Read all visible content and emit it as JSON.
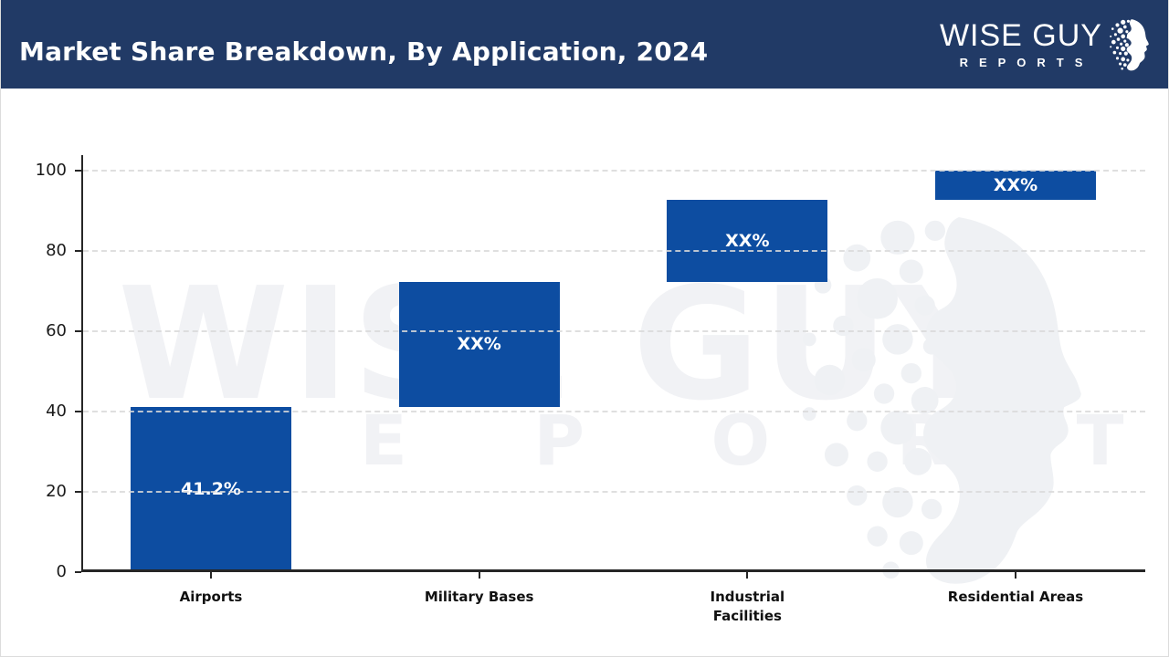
{
  "header": {
    "title": "Market Share Breakdown, By Application, 2024",
    "logo": {
      "line1": "WISE GUY",
      "line2": "REPORTS"
    }
  },
  "watermark": {
    "line1": "WISE GUY",
    "line2": "R E P O R T S"
  },
  "chart_data": {
    "type": "bar",
    "subtype": "waterfall",
    "title": "Market Share Breakdown, By Application, 2024",
    "categories": [
      "Airports",
      "Military Bases",
      "Industrial Facilities",
      "Residential Areas"
    ],
    "bars": [
      {
        "category": "Airports",
        "category_display": "Airports",
        "start": 0,
        "end": 41.2,
        "label": "41.2%"
      },
      {
        "category": "Military Bases",
        "category_display": "Military Bases",
        "start": 41.2,
        "end": 72.3,
        "label": "XX%"
      },
      {
        "category": "Industrial Facilities",
        "category_display": "Industrial\nFacilities",
        "start": 72.3,
        "end": 92.7,
        "label": "XX%"
      },
      {
        "category": "Residential Areas",
        "category_display": "Residential Areas",
        "start": 92.7,
        "end": 100,
        "label": "XX%"
      }
    ],
    "xlabel": "",
    "ylabel": "",
    "yticks": [
      0,
      20,
      40,
      60,
      80,
      100
    ],
    "ylim": [
      0,
      104
    ],
    "grid": "horizontal-dashed",
    "legend": "none",
    "bar_color": "#0d4da1",
    "bar_label_color": "#ffffff"
  },
  "colors": {
    "header_bg": "#213a66",
    "bar": "#0d4da1",
    "axis": "#262626",
    "gridline": "#d9d9d9",
    "watermark": "#f1f2f5",
    "page_border": "#dcdcdc"
  }
}
